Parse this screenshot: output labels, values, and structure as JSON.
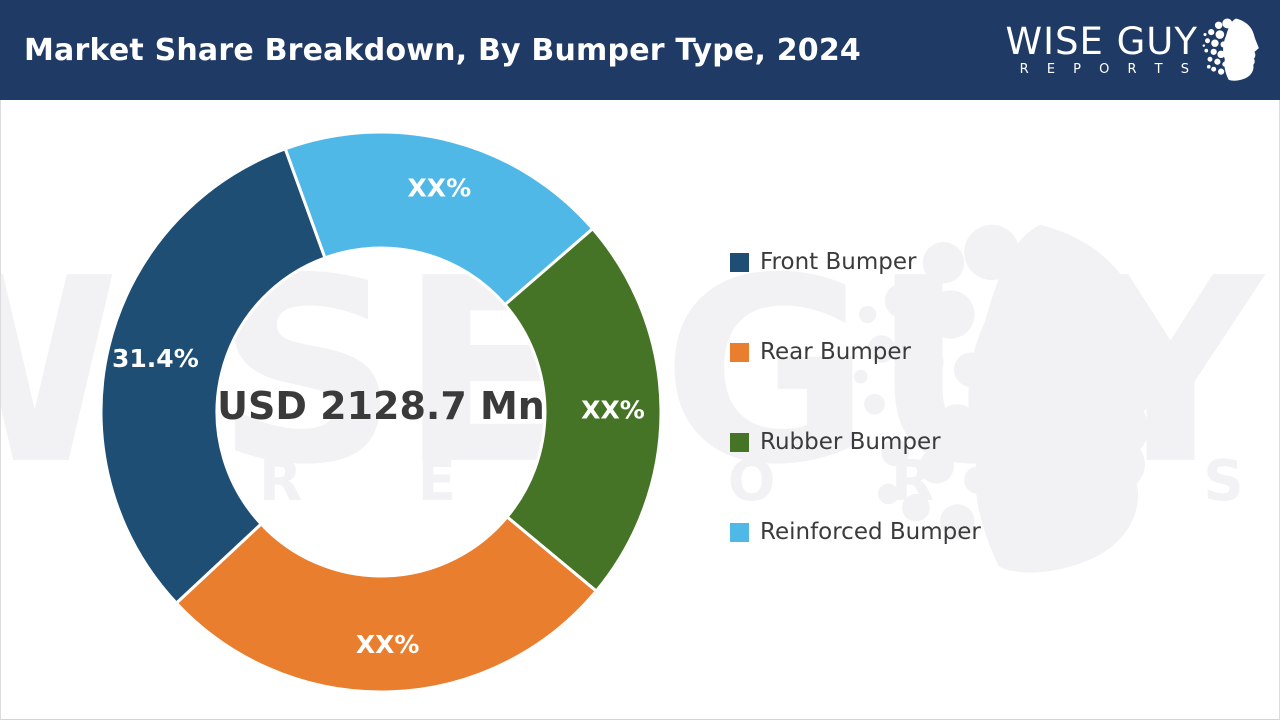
{
  "header": {
    "title": "Market Share Breakdown, By Bumper Type, 2024",
    "logo": {
      "wordmark": "WISE GUY",
      "subtitle": "R E P O R T S"
    }
  },
  "watermark": {
    "wordmark": "WISE GUY",
    "subtitle": "R E P O R T S"
  },
  "colors": {
    "header_bg": "#1F3A64",
    "page_bg": "#FFFFFF",
    "text_dark": "#3A3A3A",
    "legend_text": "#3B3B3B",
    "watermark": "#F2F2F5",
    "slice_separator": "#FFFFFF"
  },
  "chart_data": {
    "type": "pie",
    "variant": "donut",
    "title": "Market Share Breakdown, By Bumper Type, 2024",
    "center_label": "USD 2128.7 Mn",
    "start_angle_deg": -20,
    "winding": "counterclockwise",
    "legend_position": "right",
    "segments": [
      {
        "label": "Front Bumper",
        "display_value": "31.4%",
        "value_pct": 31.4,
        "color": "#1F4E74"
      },
      {
        "label": "Rear Bumper",
        "display_value": "XX%",
        "value_pct": 27.0,
        "color": "#E87E2E"
      },
      {
        "label": "Rubber Bumper",
        "display_value": "XX%",
        "value_pct": 22.4,
        "color": "#457427"
      },
      {
        "label": "Reinforced Bumper",
        "display_value": "XX%",
        "value_pct": 19.2,
        "color": "#50B8E6"
      }
    ]
  }
}
